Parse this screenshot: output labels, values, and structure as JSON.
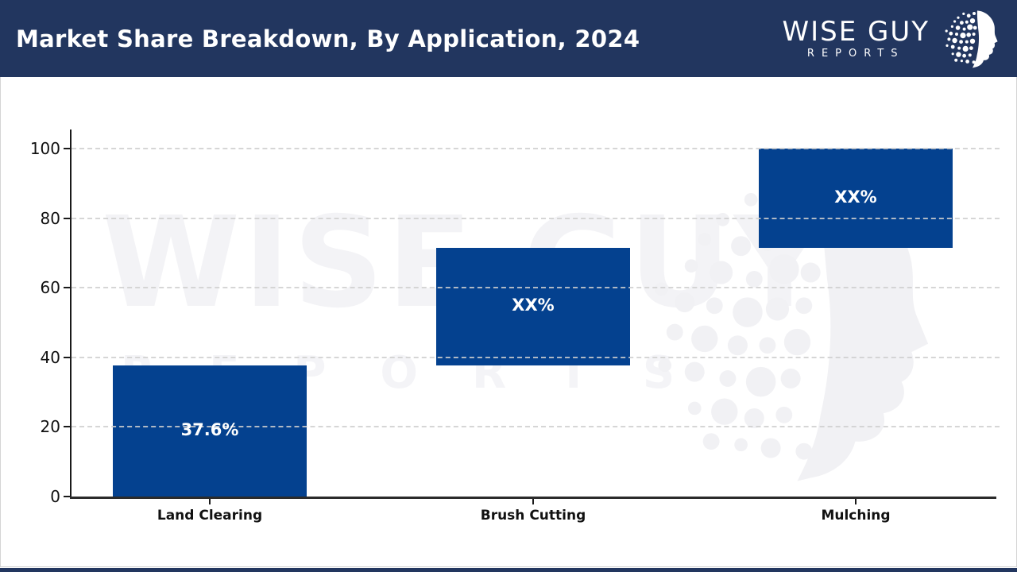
{
  "header": {
    "title": "Market Share Breakdown, By Application, 2024",
    "logo": {
      "line1": "WISE GUY",
      "line2": "REPORTS"
    },
    "bg_color": "#22365f"
  },
  "watermark": {
    "line1": "WISE GUY",
    "line2": "REPORTS"
  },
  "chart_data": {
    "type": "bar",
    "variant": "floating-waterfall",
    "title": "Market Share Breakdown, By Application, 2024",
    "categories": [
      "Land Clearing",
      "Brush Cutting",
      "Mulching"
    ],
    "bars": [
      {
        "category": "Land Clearing",
        "start": 0,
        "end": 37.6,
        "label": "37.6%"
      },
      {
        "category": "Brush Cutting",
        "start": 37.6,
        "end": 71.4,
        "label": "XX%"
      },
      {
        "category": "Mulching",
        "start": 71.4,
        "end": 100,
        "label": "XX%"
      }
    ],
    "ylim": [
      0,
      100
    ],
    "yticks": [
      0,
      20,
      40,
      60,
      80,
      100
    ],
    "xlabel": "",
    "ylabel": "",
    "bar_color": "#04418f",
    "bar_label_color": "#ffffff",
    "grid": {
      "axis": "y",
      "style": "dashed",
      "over_bars": true
    },
    "legend": null
  }
}
